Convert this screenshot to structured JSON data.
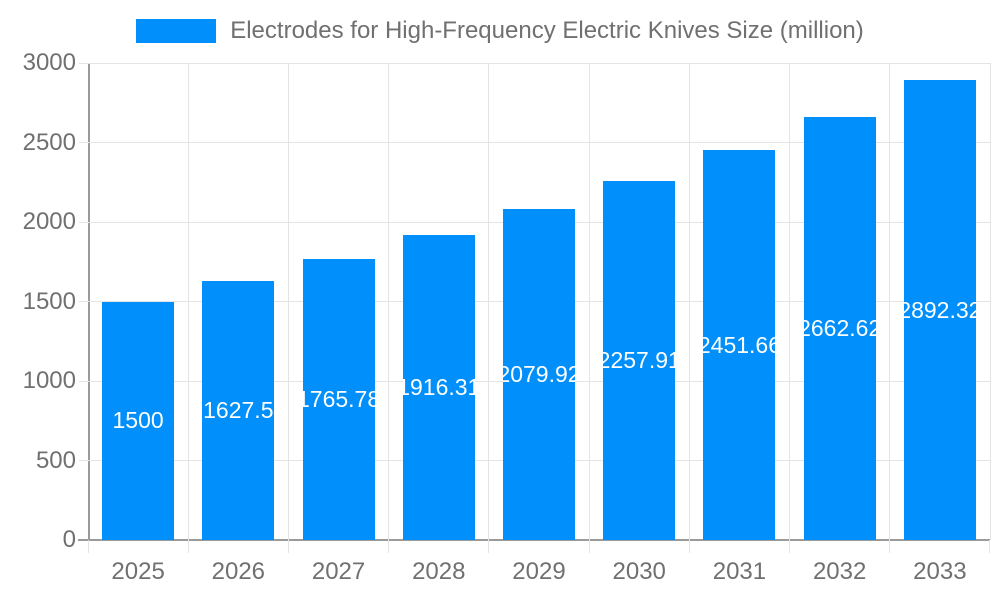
{
  "legend": {
    "label": "Electrodes for High-Frequency Electric Knives Size (million)",
    "swatch_color": "#008FFB"
  },
  "chart_data": {
    "type": "bar",
    "title": "Electrodes for High-Frequency Electric Knives Size (million)",
    "categories": [
      "2025",
      "2026",
      "2027",
      "2028",
      "2029",
      "2030",
      "2031",
      "2032",
      "2033"
    ],
    "series": [
      {
        "name": "Electrodes for High-Frequency Electric Knives Size (million)",
        "values": [
          1500,
          1627.5,
          1765.78,
          1916.31,
          2079.92,
          2257.91,
          2451.66,
          2662.62,
          2892.32
        ]
      }
    ],
    "value_labels": [
      "1500",
      "1627.5",
      "1765.78",
      "1916.31",
      "2079.92",
      "2257.91",
      "2451.66",
      "2662.62",
      "2892.32"
    ],
    "xlabel": "",
    "ylabel": "",
    "ylim": [
      0,
      3000
    ],
    "yticks": [
      0,
      500,
      1000,
      1500,
      2000,
      2500,
      3000
    ],
    "grid": true,
    "legend_position": "top",
    "colors": {
      "bar": "#008FFB",
      "value_label": "#ffffff",
      "tick_label": "#707070",
      "grid_line": "#e4e4e4",
      "axis_line": "#9a9a9a",
      "background": "#ffffff"
    }
  }
}
